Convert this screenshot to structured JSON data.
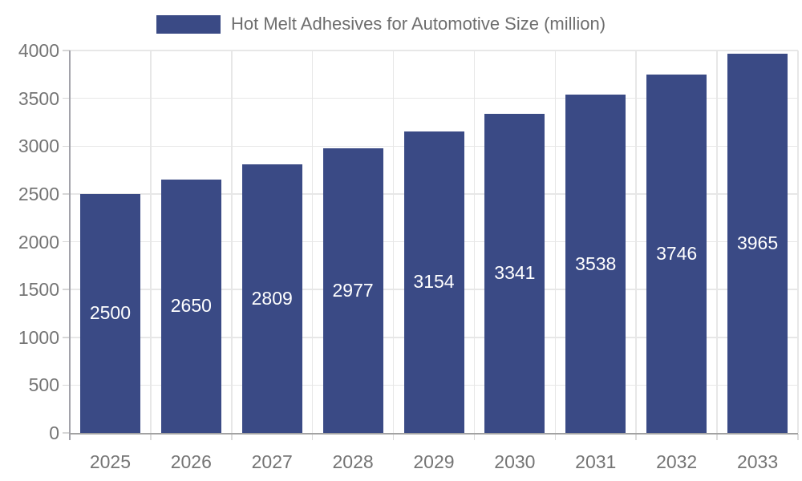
{
  "chart_data": {
    "type": "bar",
    "title": "Hot Melt Adhesives for Automotive Size (million)",
    "categories": [
      "2025",
      "2026",
      "2027",
      "2028",
      "2029",
      "2030",
      "2031",
      "2032",
      "2033"
    ],
    "values": [
      2500,
      2650,
      2809,
      2977,
      3154,
      3341,
      3538,
      3746,
      3965
    ],
    "xlabel": "",
    "ylabel": "",
    "ylim": [
      0,
      4000
    ],
    "yticks": [
      0,
      500,
      1000,
      1500,
      2000,
      2500,
      3000,
      3500,
      4000
    ],
    "grid": true,
    "value_labels": "centered-in-bar",
    "legend_position": "top-center",
    "colors": {
      "bar": "#3A4A85",
      "value_label": "#FFFFFF",
      "grid": "#E7E7E7",
      "axis_line": "#A2A2A2",
      "tick_mark": "#D6D6D6",
      "tick_label": "#757575",
      "legend_text": "#6E6E6E",
      "background": "#FFFFFF"
    }
  }
}
